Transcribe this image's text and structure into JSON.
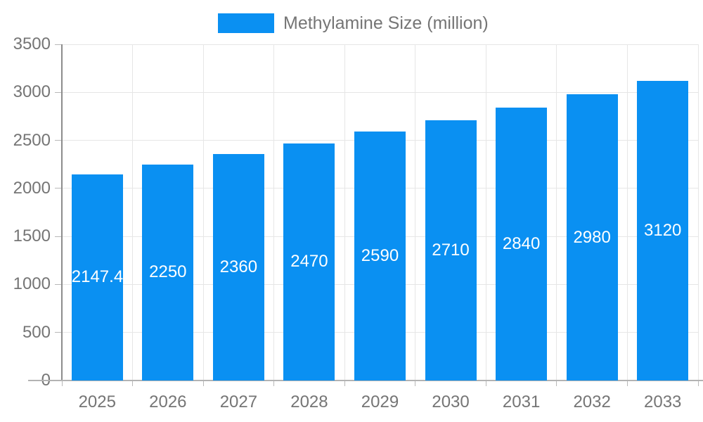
{
  "legend": {
    "label": "Methylamine Size (million)"
  },
  "colors": {
    "bar": "#0a90f2",
    "bar_label": "#ffffff",
    "grid": "#e6e6e6",
    "tick": "#b8b8b8",
    "axis_y": "#8c8c8c",
    "axis_x": "#b3b3b3",
    "text": "#757575"
  },
  "chart_data": {
    "type": "bar",
    "title": "Methylamine Size (million)",
    "categories": [
      "2025",
      "2026",
      "2027",
      "2028",
      "2029",
      "2030",
      "2031",
      "2032",
      "2033"
    ],
    "values": [
      2147.4,
      2250,
      2360,
      2470,
      2590,
      2710,
      2840,
      2980,
      3120
    ],
    "value_labels": [
      "2147.4",
      "2250",
      "2360",
      "2470",
      "2590",
      "2710",
      "2840",
      "2980",
      "3120"
    ],
    "xlabel": "",
    "ylabel": "",
    "ylim": [
      0,
      3500
    ],
    "ytick_step": 500,
    "ytick_labels": [
      "0",
      "500",
      "1000",
      "1500",
      "2000",
      "2500",
      "3000",
      "3500"
    ],
    "grid": true,
    "legend_position": "top"
  }
}
